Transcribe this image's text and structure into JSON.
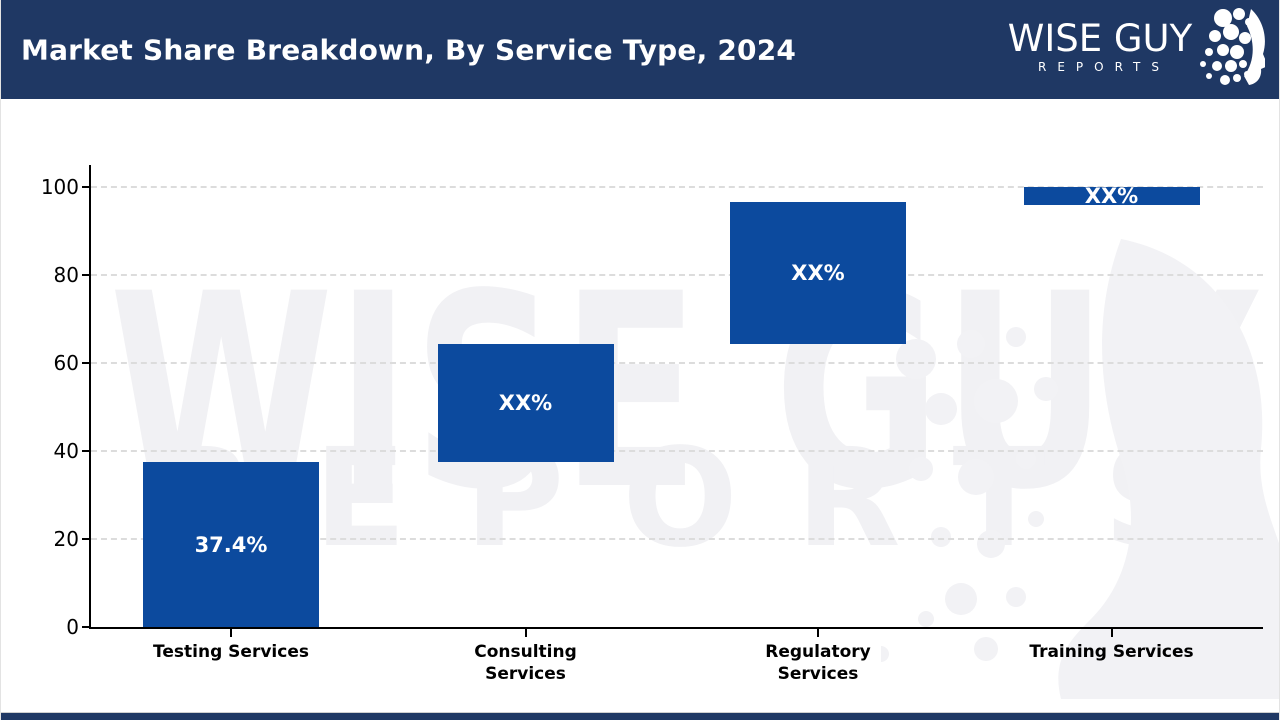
{
  "header": {
    "title": "Market Share Breakdown, By Service Type, 2024",
    "bg_color": "#1F3864",
    "logo": {
      "line1": "WISE GUY",
      "line2": "REPORTS"
    }
  },
  "watermark": {
    "line1": "WISE GUY",
    "line2": "REPORTS"
  },
  "chart_data": {
    "type": "bar",
    "subtype": "waterfall",
    "title": "Market Share Breakdown, By Service Type, 2024",
    "categories": [
      "Testing Services",
      "Consulting Services",
      "Regulatory Services",
      "Training Services"
    ],
    "category_label_lines": [
      [
        "Testing Services"
      ],
      [
        "Consulting",
        "Services"
      ],
      [
        "Regulatory",
        "Services"
      ],
      [
        "Training Services"
      ]
    ],
    "segments": [
      {
        "category": "Testing Services",
        "from": 0,
        "to": 37.4,
        "label": "37.4%"
      },
      {
        "category": "Consulting Services",
        "from": 37.4,
        "to": 64.4,
        "label": "XX%"
      },
      {
        "category": "Regulatory Services",
        "from": 64.4,
        "to": 96.6,
        "label": "XX%"
      },
      {
        "category": "Training Services",
        "from": 95.9,
        "to": 100,
        "label": "XX%"
      }
    ],
    "bar_color": "#0C4A9E",
    "bar_label_color": "#ffffff",
    "axis_color": "#000000",
    "grid_color": "#dcdcdc",
    "ylim": [
      0,
      100
    ],
    "yticks": [
      0,
      20,
      40,
      60,
      80,
      100
    ],
    "grid": "dashed-horizontal",
    "legend": "none"
  }
}
